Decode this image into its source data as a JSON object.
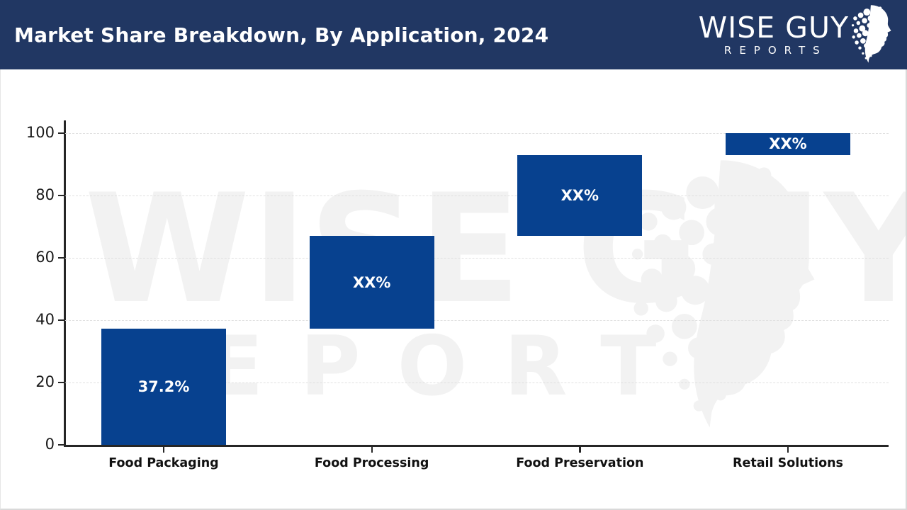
{
  "header": {
    "title": "Market Share Breakdown, By Application, 2024",
    "logo": {
      "line1": "WISE GUY",
      "line2": "REPORTS"
    }
  },
  "watermark": {
    "line1": "WISE GUY",
    "line2": "REPORTS"
  },
  "colors": {
    "header_bg": "#213763",
    "bar": "#07418f",
    "bar_label_text": "#ffffff",
    "grid": "#e0e0e0",
    "axis": "#262626",
    "tick_text": "#1a1a1a",
    "watermark": "#f2f2f2"
  },
  "chart_data": {
    "type": "bar",
    "subtype": "floating-waterfall",
    "title": "Market Share Breakdown, By Application, 2024",
    "xlabel": "",
    "ylabel": "",
    "categories": [
      "Food Packaging",
      "Food Processing",
      "Food Preservation",
      "Retail Solutions"
    ],
    "bars": [
      {
        "category": "Food Packaging",
        "start": 0,
        "end": 37.2,
        "label": "37.2%"
      },
      {
        "category": "Food Processing",
        "start": 37.2,
        "end": 67,
        "label": "XX%"
      },
      {
        "category": "Food Preservation",
        "start": 67,
        "end": 93,
        "label": "XX%"
      },
      {
        "category": "Retail Solutions",
        "start": 93,
        "end": 100,
        "label": "XX%"
      }
    ],
    "ylim": [
      0,
      105
    ],
    "yticks": [
      0,
      20,
      40,
      60,
      80,
      100
    ],
    "grid": "horizontal-dashed",
    "legend": "none"
  }
}
